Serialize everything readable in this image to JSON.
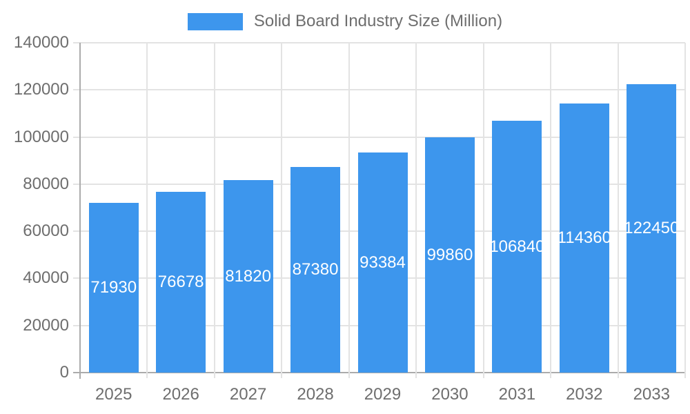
{
  "legend": {
    "label": "Solid Board Industry Size (Million)"
  },
  "chart_data": {
    "type": "bar",
    "title": "",
    "xlabel": "",
    "ylabel": "",
    "categories": [
      "2025",
      "2026",
      "2027",
      "2028",
      "2029",
      "2030",
      "2031",
      "2032",
      "2033"
    ],
    "series": [
      {
        "name": "Solid Board Industry Size (Million)",
        "values": [
          71930,
          76678,
          81820,
          87380,
          93384,
          99860,
          106840,
          114360,
          122450
        ]
      }
    ],
    "value_labels_shown": true,
    "ylim": [
      0,
      140000
    ],
    "ytick_step": 20000,
    "ytick_labels": [
      "0",
      "20000",
      "40000",
      "60000",
      "80000",
      "100000",
      "120000",
      "140000"
    ],
    "grid": true,
    "legend_position": "top",
    "colors": {
      "bar": "#3d96ed",
      "bar_value_text": "#ffffff",
      "grid_line": "#e3e3e3",
      "axis_line": "#ababab",
      "axis_text": "#6e6e6e",
      "legend_text": "#6e6e6e"
    }
  }
}
